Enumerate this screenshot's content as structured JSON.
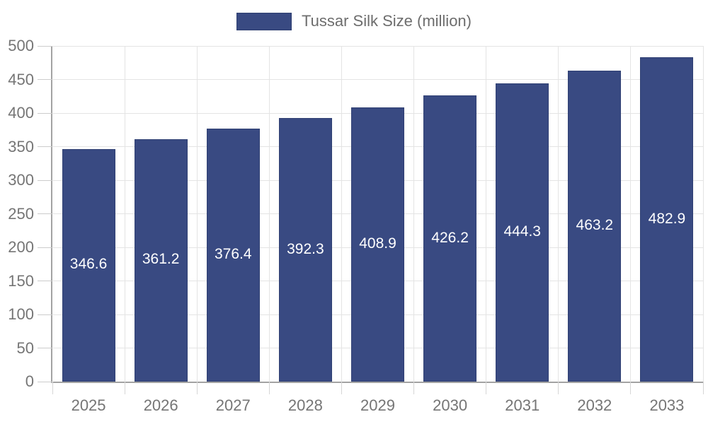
{
  "legend": {
    "label": "Tussar Silk Size (million)"
  },
  "colors": {
    "bar": "#394a82",
    "grid": "#e4e4e4",
    "axis": "#a3a3a3",
    "tick": "#cccccc",
    "axis_label": "#757575",
    "legend_text": "#6d6d6d",
    "value_label": "#ffffff",
    "background": "#ffffff"
  },
  "chart_data": {
    "type": "bar",
    "categories": [
      "2025",
      "2026",
      "2027",
      "2028",
      "2029",
      "2030",
      "2031",
      "2032",
      "2033"
    ],
    "values": [
      346.6,
      361.2,
      376.4,
      392.3,
      408.9,
      426.2,
      444.3,
      463.2,
      482.9
    ],
    "series_name": "Tussar Silk Size (million)",
    "title": "",
    "xlabel": "",
    "ylabel": "",
    "ylim": [
      0,
      500
    ],
    "ytick_step": 50,
    "grid": true,
    "legend_position": "top-center",
    "value_labels": "inside-center"
  }
}
